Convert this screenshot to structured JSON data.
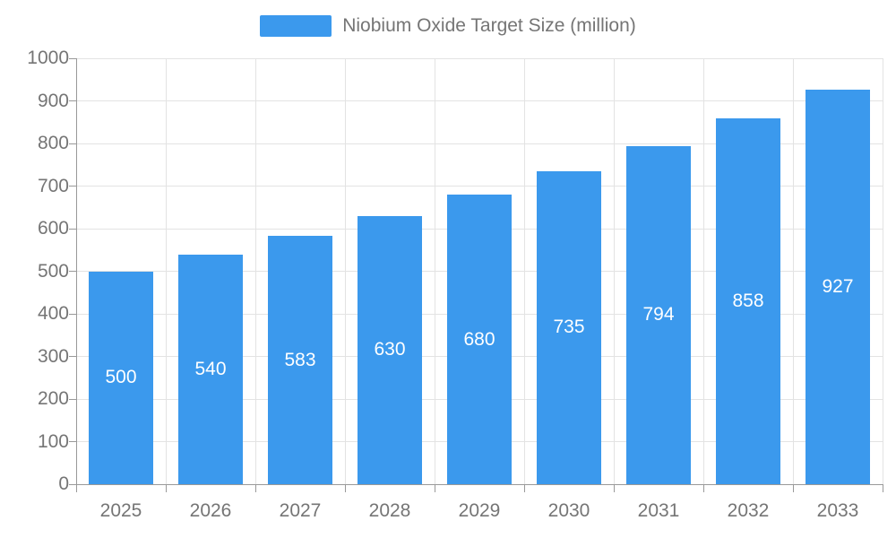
{
  "legend": {
    "label": "Niobium Oxide Target Size (million)"
  },
  "colors": {
    "bar": "#3B99ED",
    "bar_label": "#FFFFFF",
    "axis_line": "#999999",
    "grid_line": "#E3E3E3",
    "text": "#757575",
    "background": "#FFFFFF"
  },
  "chart_data": {
    "type": "bar",
    "title": "Niobium Oxide Target Size (million)",
    "categories": [
      "2025",
      "2026",
      "2027",
      "2028",
      "2029",
      "2030",
      "2031",
      "2032",
      "2033"
    ],
    "values": [
      500,
      540,
      583,
      630,
      680,
      735,
      794,
      858,
      927
    ],
    "xlabel": "",
    "ylabel": "",
    "ylim": [
      0,
      1000
    ],
    "y_tick_step": 100,
    "grid": true,
    "legend_position": "top-center",
    "bar_labels": "inside-middle"
  }
}
